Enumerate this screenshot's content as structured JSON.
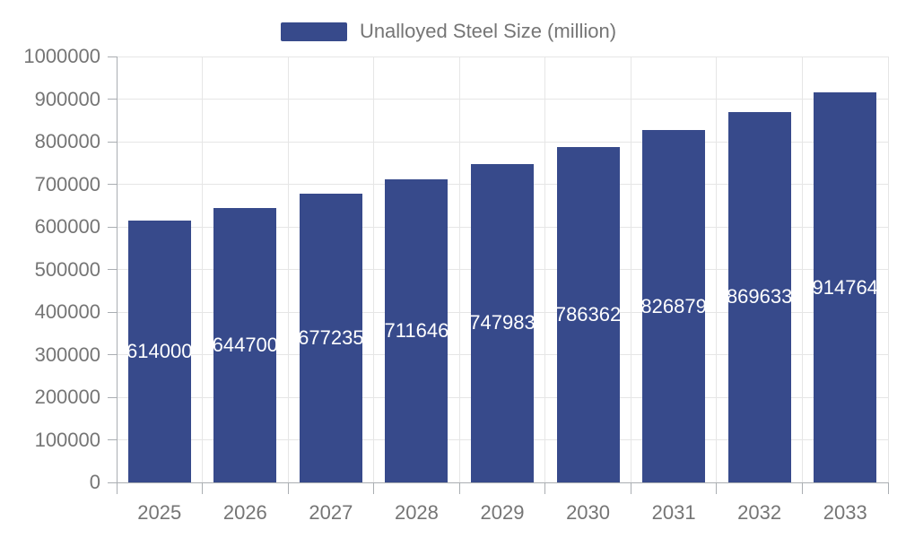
{
  "chart_data": {
    "type": "bar",
    "title": "Unalloyed Steel Size (million)",
    "legend_label": "Unalloyed Steel Size (million)",
    "legend_position": "top",
    "categories": [
      "2025",
      "2026",
      "2027",
      "2028",
      "2029",
      "2030",
      "2031",
      "2032",
      "2033"
    ],
    "values": [
      614000,
      644700,
      677235,
      711646,
      747983,
      786362,
      826879,
      869633,
      914764
    ],
    "xlabel": "",
    "ylabel": "",
    "ylim": [
      0,
      1000000
    ],
    "ytick_interval": 100000,
    "ytick_labels": [
      "0",
      "100000",
      "200000",
      "300000",
      "400000",
      "500000",
      "600000",
      "700000",
      "800000",
      "900000",
      "1000000"
    ],
    "grid": true,
    "data_labels_shown": true,
    "colors": {
      "bar": "#374a8b",
      "data_label": "#ffffff",
      "axis_label": "#757575",
      "legend_text": "#757575",
      "grid_line": "#e6e6e6",
      "axis_line": "#aaaeb2",
      "background": "#ffffff"
    }
  }
}
